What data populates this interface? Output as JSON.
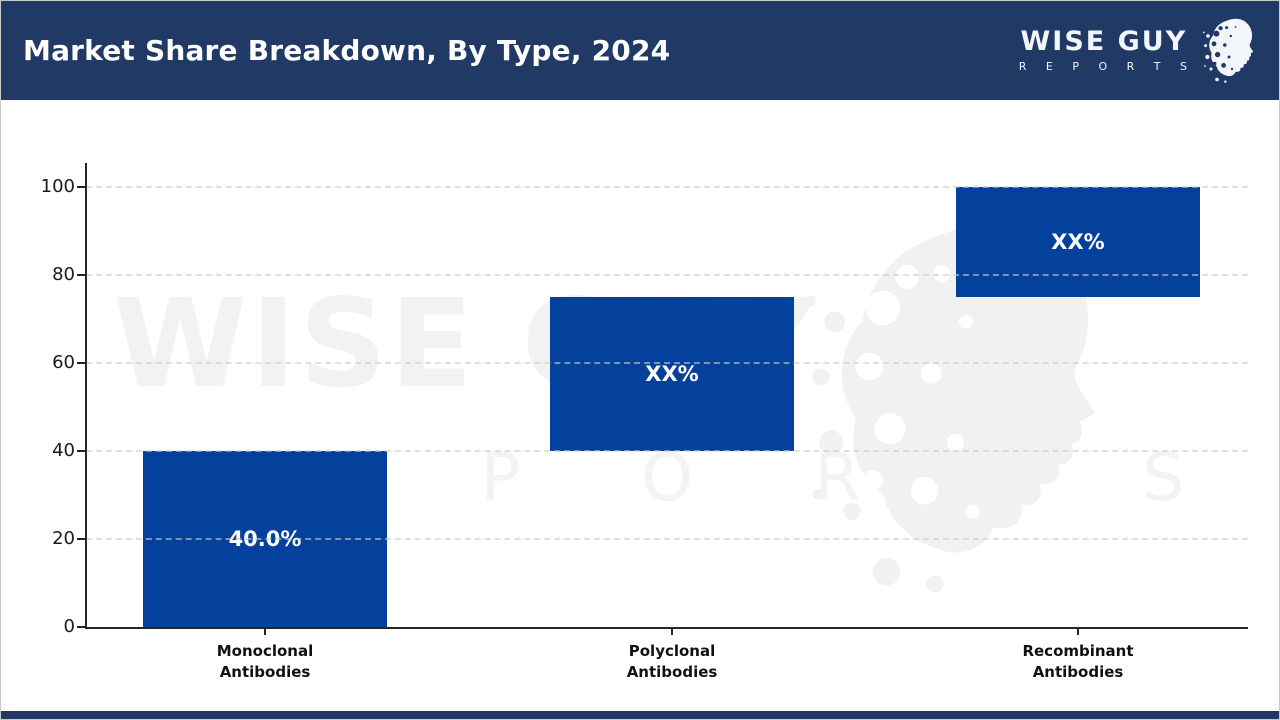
{
  "header": {
    "title": "Market Share Breakdown, By Type, 2024",
    "logo": {
      "name": "WISE GUY",
      "sub": "R E P O R T S"
    }
  },
  "watermark": {
    "big_text": "WISE GUY",
    "sub_text": "R E P O R T S"
  },
  "chart_data": {
    "type": "bar",
    "subtype": "waterfall",
    "title": "Market Share Breakdown, By Type, 2024",
    "categories": [
      {
        "line1": "Monoclonal",
        "line2": "Antibodies"
      },
      {
        "line1": "Polyclonal",
        "line2": "Antibodies"
      },
      {
        "line1": "Recombinant",
        "line2": "Antibodies"
      }
    ],
    "segments": [
      {
        "category": "Monoclonal Antibodies",
        "start": 0,
        "end": 40,
        "label": "40.0%"
      },
      {
        "category": "Polyclonal Antibodies",
        "start": 40,
        "end": 75,
        "label": "XX%"
      },
      {
        "category": "Recombinant Antibodies",
        "start": 75,
        "end": 100,
        "label": "XX%"
      }
    ],
    "yticks": [
      0,
      20,
      40,
      60,
      80,
      100
    ],
    "ylim": [
      0,
      105
    ],
    "grid": {
      "axis": "y",
      "style": "dashed"
    },
    "legend": "none",
    "colors": {
      "bar": "#04419c",
      "header_bg": "#213965",
      "grid": "#d9d9d9",
      "axis": "#262626",
      "bar_label": "#ffffff",
      "tick_label": "#1a1a1a"
    }
  }
}
